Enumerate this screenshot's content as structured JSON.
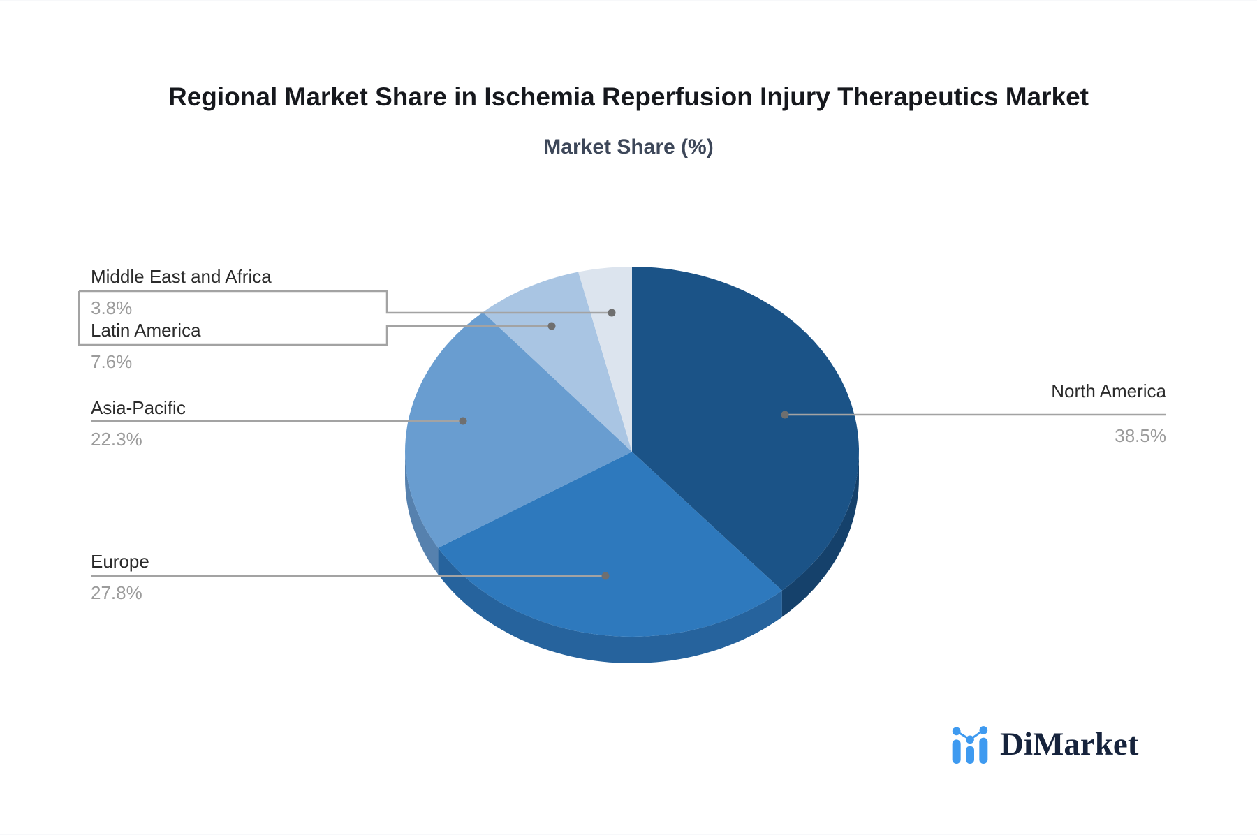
{
  "title": "Regional Market Share in Ischemia Reperfusion Injury Therapeutics Market",
  "subtitle": "Market Share (%)",
  "logo": {
    "text": "DiMarket",
    "icon": "bar-chart-logo-icon",
    "icon_color": "#3e9af0",
    "text_color": "#16233c"
  },
  "colors": {
    "background": "#ffffff",
    "title_text": "#16181d",
    "subtitle_text": "#3d4759",
    "label_text": "#2b2b2b",
    "value_text": "#9b9b9b",
    "leader_line": "#a3a3a3",
    "leader_dot": "#6f6f6f"
  },
  "chart_data": {
    "type": "pie",
    "style": "3d",
    "title": "Regional Market Share in Ischemia Reperfusion Injury Therapeutics Market",
    "subtitle": "Market Share (%)",
    "unit": "%",
    "start_angle": "12-oclock",
    "direction": "clockwise",
    "legend_position": "callout-labels",
    "segments": [
      {
        "label": "North America",
        "value": 38.5,
        "display": "38.5%",
        "color": "#1b5387",
        "side_color": "#15416b"
      },
      {
        "label": "Europe",
        "value": 27.8,
        "display": "27.8%",
        "color": "#2e79bd",
        "side_color": "#26639d"
      },
      {
        "label": "Asia-Pacific",
        "value": 22.3,
        "display": "22.3%",
        "color": "#699dd0",
        "side_color": "#5681ae"
      },
      {
        "label": "Latin America",
        "value": 7.6,
        "display": "7.6%",
        "color": "#a9c5e3",
        "side_color": "#8aa8c7"
      },
      {
        "label": "Middle East and Africa",
        "value": 3.8,
        "display": "3.8%",
        "color": "#dce4ee",
        "side_color": "#b9c6d6"
      }
    ]
  }
}
